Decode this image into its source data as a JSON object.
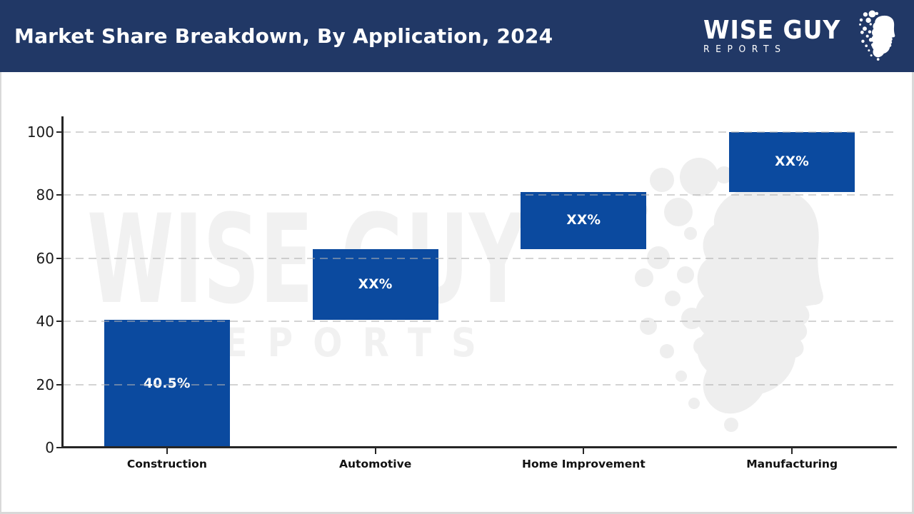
{
  "header": {
    "title": "Market Share Breakdown, By Application, 2024",
    "logo": {
      "line1": "WISE GUY",
      "line2": "REPORTS"
    }
  },
  "watermark": {
    "line1": "WISE GUY",
    "line2": "REPORTS"
  },
  "chart_data": {
    "type": "bar",
    "subtype": "floating-waterfall",
    "title": "Market Share Breakdown, By Application, 2024",
    "categories": [
      "Construction",
      "Automotive",
      "Home Improvement",
      "Manufacturing"
    ],
    "segments": [
      {
        "category": "Construction",
        "start": 0,
        "end": 40.5,
        "label": "40.5%"
      },
      {
        "category": "Automotive",
        "start": 40.5,
        "end": 63,
        "label": "XX%"
      },
      {
        "category": "Home Improvement",
        "start": 63,
        "end": 81,
        "label": "XX%"
      },
      {
        "category": "Manufacturing",
        "start": 81,
        "end": 100,
        "label": "XX%"
      }
    ],
    "segment_heights_pct": [
      40.5,
      22.5,
      18,
      19
    ],
    "value_labels": [
      "40.5%",
      "XX%",
      "XX%",
      "XX%"
    ],
    "xlabel": "",
    "ylabel": "",
    "yticks": [
      0,
      20,
      40,
      60,
      80,
      100
    ],
    "ylim": [
      0,
      105
    ],
    "grid": "horizontal-dashed",
    "legend": "none",
    "colors": {
      "bar": "#0b4a9f",
      "bar_label": "#ffffff",
      "axis": "#262626",
      "gridline": "#d9d9d9",
      "header_background": "#213866",
      "title_text": "#ffffff",
      "watermark": "#f0f0f0"
    }
  }
}
